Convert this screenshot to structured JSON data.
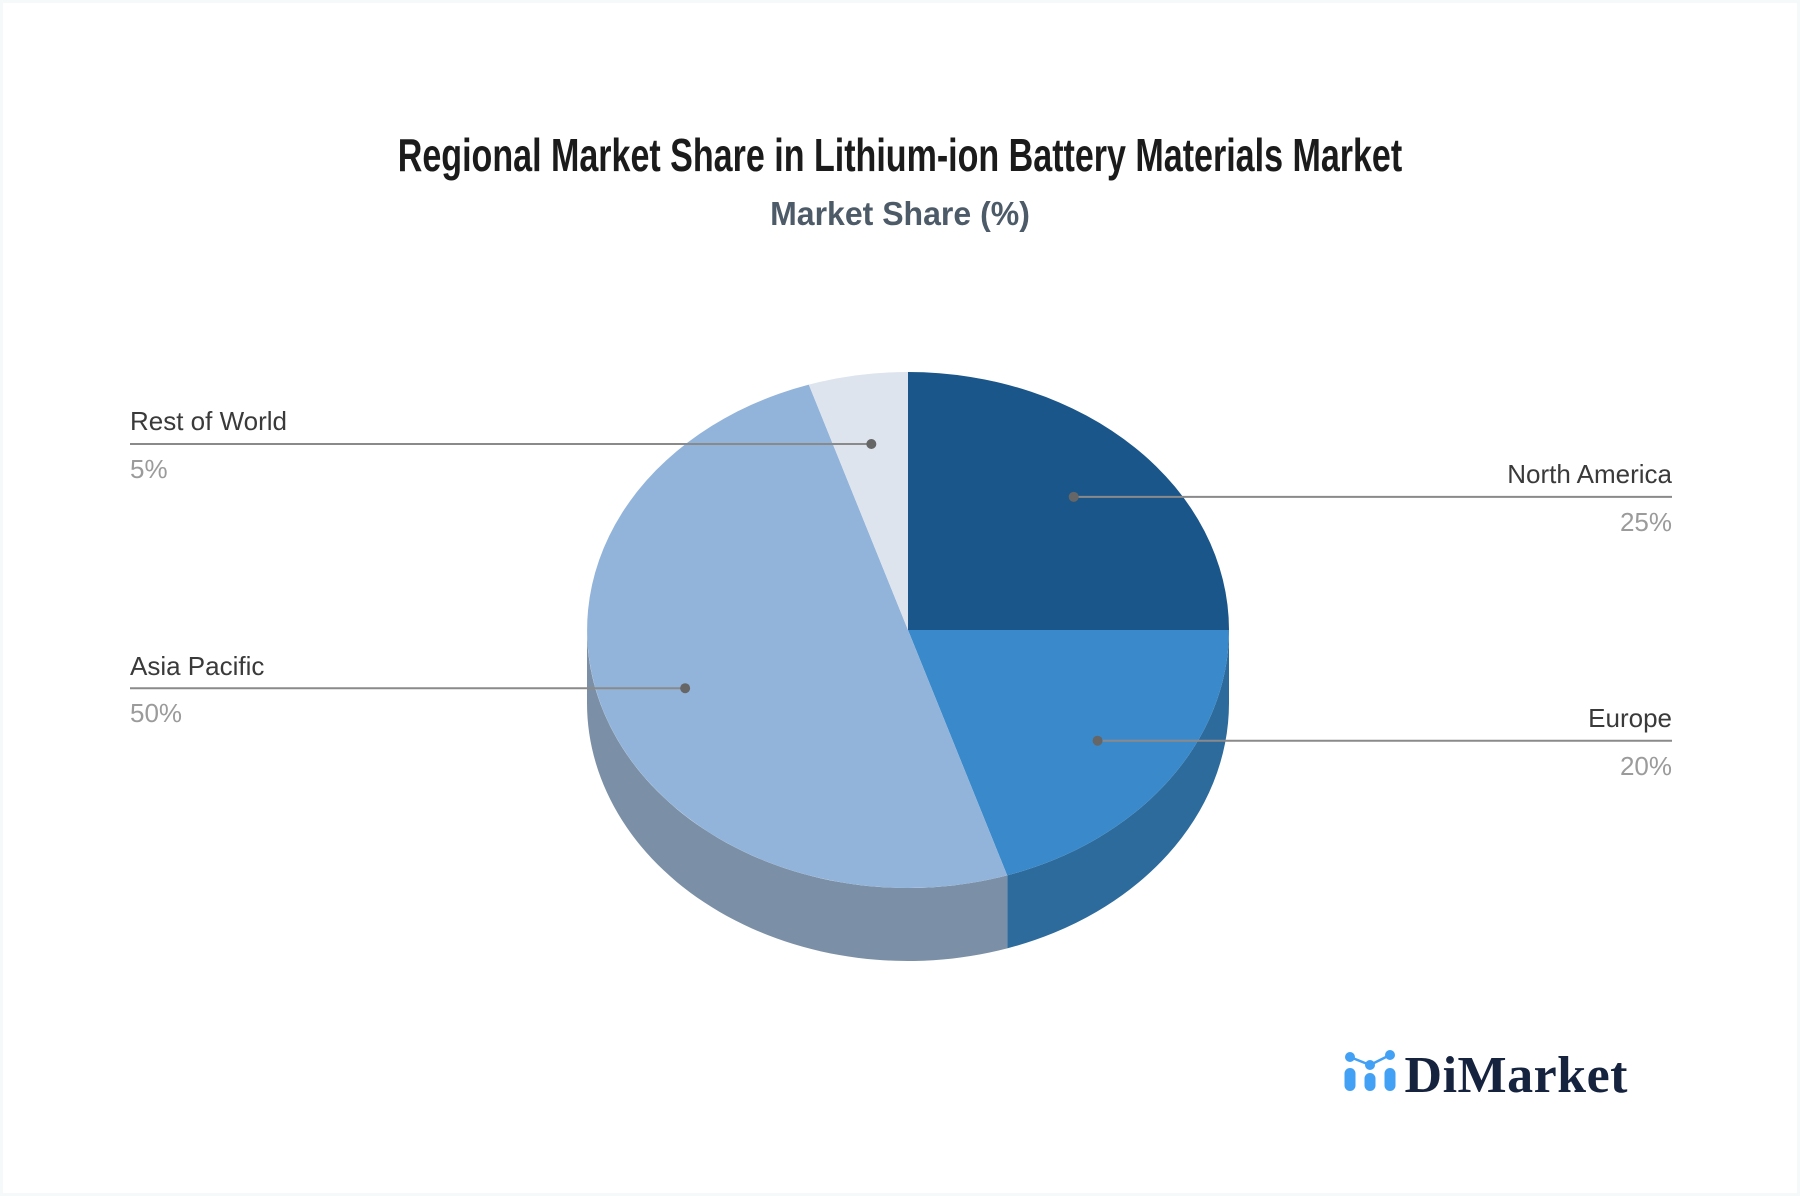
{
  "title": "Regional Market Share in Lithium-ion Battery Materials Market",
  "subtitle": "Market Share (%)",
  "brand": {
    "name": "DiMarket",
    "icon": "bar-line-chart-icon"
  },
  "palette": {
    "background": "#ffffff",
    "title_text": "#1b1b1b",
    "subtitle_text": "#4d5b68",
    "slice_label_text": "#3a3a3a",
    "slice_value_text": "#9b9b9b",
    "leader_line": "#8a8a8a",
    "leader_dot": "#666666",
    "logo_icon_blue": "#42a0f5",
    "logo_text_navy": "#16233e"
  },
  "chart_data": {
    "type": "pie",
    "title": "Regional Market Share in Lithium-ion Battery Materials Market",
    "subtitle": "Market Share (%)",
    "unit": "%",
    "style": "3d-pie",
    "start_angle_deg": 0,
    "direction": "clockwise",
    "legend_position": "callout-labels",
    "slices": [
      {
        "label": "North America",
        "value": 25,
        "value_label": "25%",
        "color": "#1a5689"
      },
      {
        "label": "Europe",
        "value": 20,
        "value_label": "20%",
        "color": "#3a8acb",
        "side_color": "#2d6b9c"
      },
      {
        "label": "Asia Pacific",
        "value": 50,
        "value_label": "50%",
        "color": "#92b4da",
        "side_color": "#7b90a6"
      },
      {
        "label": "Rest of World",
        "value": 5,
        "value_label": "5%",
        "color": "#dde4ee"
      }
    ]
  }
}
